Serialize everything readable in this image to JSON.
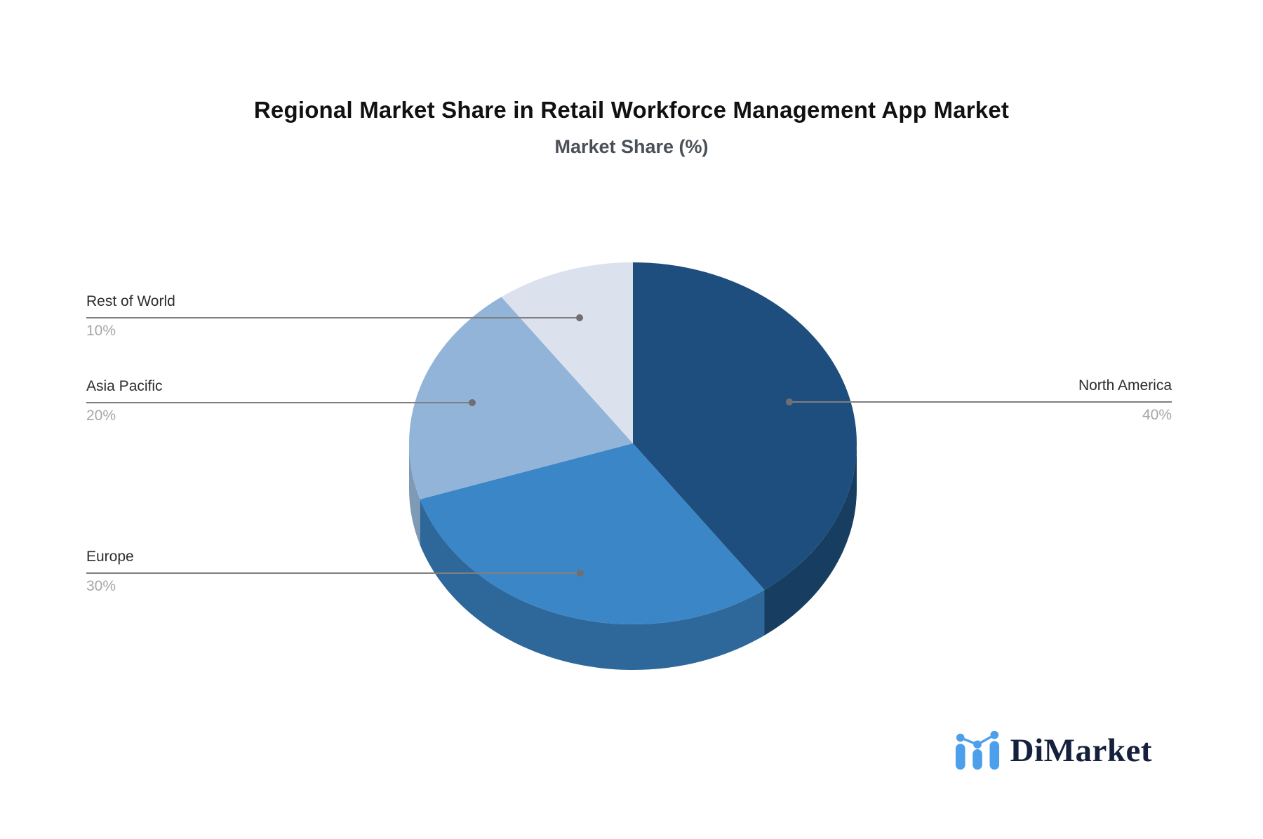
{
  "title": "Regional Market Share in Retail Workforce Management App Market",
  "subtitle": "Market Share (%)",
  "chart_data": {
    "type": "pie",
    "effect": "3d",
    "unit": "%",
    "start_angle": "12-oclock",
    "direction": "clockwise",
    "legend": "none",
    "slices": [
      {
        "label": "North America",
        "value": 40,
        "color": "#1E4E7D",
        "side_color": "#173E60"
      },
      {
        "label": "Europe",
        "value": 30,
        "color": "#3B86C7",
        "side_color": "#2E689B"
      },
      {
        "label": "Asia Pacific",
        "value": 20,
        "color": "#92B4D8",
        "side_color": "#7E9AB5"
      },
      {
        "label": "Rest of World",
        "value": 10,
        "color": "#DBE2EE",
        "side_color": "#C5CEDE"
      }
    ],
    "styles": {
      "title_color": "#111111",
      "subtitle_color": "#4A5058",
      "label_color": "#2D2D2D",
      "value_color": "#A6A6A6",
      "connector_color": "#7F7F7F",
      "connector_dot_color": "#6F6F6F",
      "background": "#FFFFFF"
    }
  },
  "logo": {
    "text": "DiMarket",
    "icon": "bar-chart-trend-icon",
    "icon_color": "#4D9FEC",
    "text_color": "#15203C"
  }
}
